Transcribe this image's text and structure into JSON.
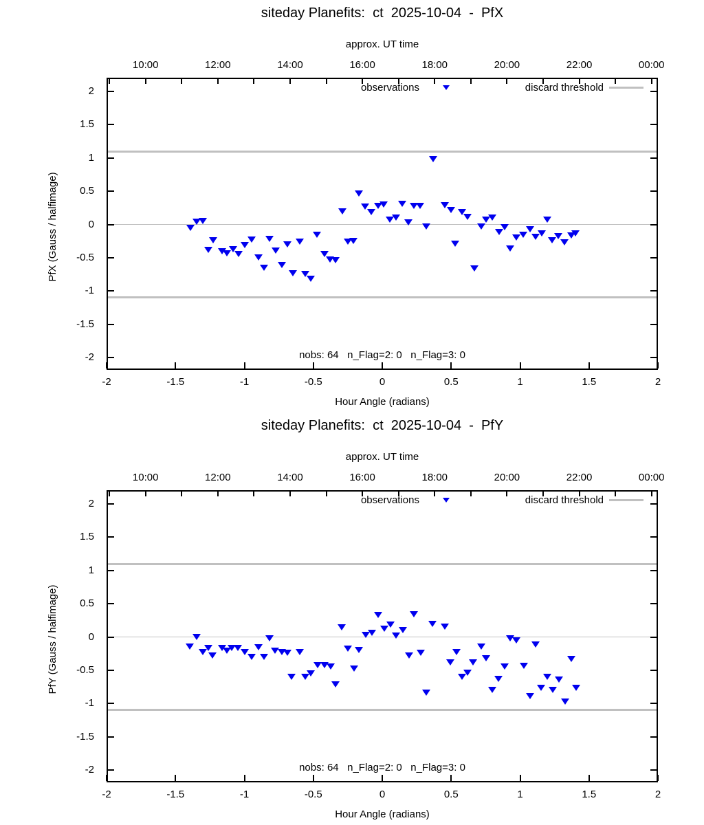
{
  "colors": {
    "marker": "#0000ee",
    "threshold_line": "#c0c0c0",
    "zero_line": "#c0c0c0",
    "axis": "#000000",
    "background": "#ffffff"
  },
  "chart_data": [
    {
      "type": "scatter",
      "title": "siteday Planefits:  ct  2025-10-04  -  PfX",
      "top_axis_label": "approx. UT time",
      "xlabel": "Hour Angle (radians)",
      "ylabel": "PfX (Gauss / halfimage)",
      "stats_text": "nobs: 64   n_Flag=2: 0   n_Flag=3: 0",
      "legend": {
        "observations_label": "observations",
        "threshold_label": "discard threshold"
      },
      "xlim": [
        -2,
        2
      ],
      "ylim": [
        -2.2,
        2.2
      ],
      "x_ticks": [
        -2,
        -1.5,
        -1,
        -0.5,
        0,
        0.5,
        1,
        1.5,
        2
      ],
      "y_ticks": [
        2,
        1.5,
        1,
        0.5,
        0,
        -0.5,
        -1,
        -1.5,
        -2
      ],
      "ut_tick_labels": [
        "10:00",
        "12:00",
        "14:00",
        "16:00",
        "18:00",
        "20:00",
        "22:00",
        "00:00"
      ],
      "discard_thresholds": [
        1.1,
        -1.1
      ],
      "zero_line": 0,
      "grid": false,
      "legend_position": "top-inside",
      "series": [
        {
          "name": "observations",
          "marker": "triangle-down",
          "points": [
            [
              -1.39,
              -0.06
            ],
            [
              -1.345,
              0.04
            ],
            [
              -1.3,
              0.05
            ],
            [
              -1.26,
              -0.39
            ],
            [
              -1.225,
              -0.24
            ],
            [
              -1.16,
              -0.41
            ],
            [
              -1.125,
              -0.44
            ],
            [
              -1.08,
              -0.38
            ],
            [
              -1.04,
              -0.45
            ],
            [
              -1.0,
              -0.32
            ],
            [
              -0.95,
              -0.23
            ],
            [
              -0.9,
              -0.5
            ],
            [
              -0.86,
              -0.66
            ],
            [
              -0.82,
              -0.22
            ],
            [
              -0.775,
              -0.4
            ],
            [
              -0.73,
              -0.61
            ],
            [
              -0.69,
              -0.31
            ],
            [
              -0.65,
              -0.74
            ],
            [
              -0.6,
              -0.26
            ],
            [
              -0.56,
              -0.75
            ],
            [
              -0.52,
              -0.82
            ],
            [
              -0.475,
              -0.16
            ],
            [
              -0.42,
              -0.45
            ],
            [
              -0.38,
              -0.53
            ],
            [
              -0.34,
              -0.54
            ],
            [
              -0.29,
              0.19
            ],
            [
              -0.25,
              -0.26
            ],
            [
              -0.21,
              -0.25
            ],
            [
              -0.17,
              0.46
            ],
            [
              -0.125,
              0.26
            ],
            [
              -0.08,
              0.18
            ],
            [
              -0.03,
              0.27
            ],
            [
              0.01,
              0.29
            ],
            [
              0.055,
              0.07
            ],
            [
              0.1,
              0.095
            ],
            [
              0.145,
              0.3
            ],
            [
              0.19,
              0.03
            ],
            [
              0.23,
              0.27
            ],
            [
              0.275,
              0.27
            ],
            [
              0.32,
              -0.04
            ],
            [
              0.37,
              0.98
            ],
            [
              0.455,
              0.28
            ],
            [
              0.5,
              0.21
            ],
            [
              0.53,
              -0.29
            ],
            [
              0.58,
              0.18
            ],
            [
              0.62,
              0.11
            ],
            [
              0.67,
              -0.67
            ],
            [
              0.72,
              -0.04
            ],
            [
              0.755,
              0.07
            ],
            [
              0.8,
              0.095
            ],
            [
              0.85,
              -0.12
            ],
            [
              0.89,
              -0.05
            ],
            [
              0.93,
              -0.365
            ],
            [
              0.975,
              -0.2
            ],
            [
              1.02,
              -0.16
            ],
            [
              1.07,
              -0.08
            ],
            [
              1.11,
              -0.19
            ],
            [
              1.155,
              -0.14
            ],
            [
              1.195,
              0.07
            ],
            [
              1.23,
              -0.24
            ],
            [
              1.275,
              -0.185
            ],
            [
              1.32,
              -0.27
            ],
            [
              1.37,
              -0.17
            ],
            [
              1.4,
              -0.14
            ]
          ]
        }
      ]
    },
    {
      "type": "scatter",
      "title": "siteday Planefits:  ct  2025-10-04  -  PfY",
      "top_axis_label": "approx. UT time",
      "xlabel": "Hour Angle (radians)",
      "ylabel": "PfY (Gauss / halfimage)",
      "stats_text": "nobs: 64   n_Flag=2: 0   n_Flag=3: 0",
      "legend": {
        "observations_label": "observations",
        "threshold_label": "discard threshold"
      },
      "xlim": [
        -2,
        2
      ],
      "ylim": [
        -2.2,
        2.2
      ],
      "x_ticks": [
        -2,
        -1.5,
        -1,
        -0.5,
        0,
        0.5,
        1,
        1.5,
        2
      ],
      "y_ticks": [
        2,
        1.5,
        1,
        0.5,
        0,
        -0.5,
        -1,
        -1.5,
        -2
      ],
      "ut_tick_labels": [
        "10:00",
        "12:00",
        "14:00",
        "16:00",
        "18:00",
        "20:00",
        "22:00",
        "00:00"
      ],
      "discard_thresholds": [
        1.1,
        -1.1
      ],
      "zero_line": 0,
      "grid": false,
      "legend_position": "top-inside",
      "series": [
        {
          "name": "observations",
          "marker": "triangle-down",
          "points": [
            [
              -1.395,
              -0.15
            ],
            [
              -1.345,
              -0.01
            ],
            [
              -1.3,
              -0.23
            ],
            [
              -1.26,
              -0.17
            ],
            [
              -1.23,
              -0.28
            ],
            [
              -1.16,
              -0.17
            ],
            [
              -1.125,
              -0.215
            ],
            [
              -1.09,
              -0.17
            ],
            [
              -1.045,
              -0.17
            ],
            [
              -1.0,
              -0.235
            ],
            [
              -0.95,
              -0.3
            ],
            [
              -0.9,
              -0.16
            ],
            [
              -0.86,
              -0.31
            ],
            [
              -0.82,
              -0.03
            ],
            [
              -0.78,
              -0.215
            ],
            [
              -0.73,
              -0.23
            ],
            [
              -0.69,
              -0.24
            ],
            [
              -0.66,
              -0.6
            ],
            [
              -0.6,
              -0.235
            ],
            [
              -0.56,
              -0.6
            ],
            [
              -0.52,
              -0.55
            ],
            [
              -0.47,
              -0.43
            ],
            [
              -0.42,
              -0.43
            ],
            [
              -0.375,
              -0.45
            ],
            [
              -0.34,
              -0.72
            ],
            [
              -0.295,
              0.14
            ],
            [
              -0.25,
              -0.18
            ],
            [
              -0.205,
              -0.48
            ],
            [
              -0.17,
              -0.2
            ],
            [
              -0.12,
              0.03
            ],
            [
              -0.075,
              0.06
            ],
            [
              -0.03,
              0.325
            ],
            [
              0.015,
              0.12
            ],
            [
              0.06,
              0.18
            ],
            [
              0.1,
              0.015
            ],
            [
              0.15,
              0.095
            ],
            [
              0.195,
              -0.28
            ],
            [
              0.23,
              0.335
            ],
            [
              0.28,
              -0.245
            ],
            [
              0.32,
              -0.845
            ],
            [
              0.365,
              0.19
            ],
            [
              0.455,
              0.15
            ],
            [
              0.495,
              -0.39
            ],
            [
              0.54,
              -0.235
            ],
            [
              0.58,
              -0.6
            ],
            [
              0.62,
              -0.545
            ],
            [
              0.66,
              -0.39
            ],
            [
              0.72,
              -0.15
            ],
            [
              0.755,
              -0.33
            ],
            [
              0.8,
              -0.8
            ],
            [
              0.845,
              -0.64
            ],
            [
              0.89,
              -0.45
            ],
            [
              0.93,
              -0.03
            ],
            [
              0.975,
              -0.06
            ],
            [
              1.025,
              -0.44
            ],
            [
              1.07,
              -0.89
            ],
            [
              1.11,
              -0.12
            ],
            [
              1.15,
              -0.77
            ],
            [
              1.195,
              -0.6
            ],
            [
              1.235,
              -0.8
            ],
            [
              1.28,
              -0.65
            ],
            [
              1.325,
              -0.98
            ],
            [
              1.37,
              -0.335
            ],
            [
              1.405,
              -0.77
            ]
          ]
        }
      ]
    }
  ]
}
